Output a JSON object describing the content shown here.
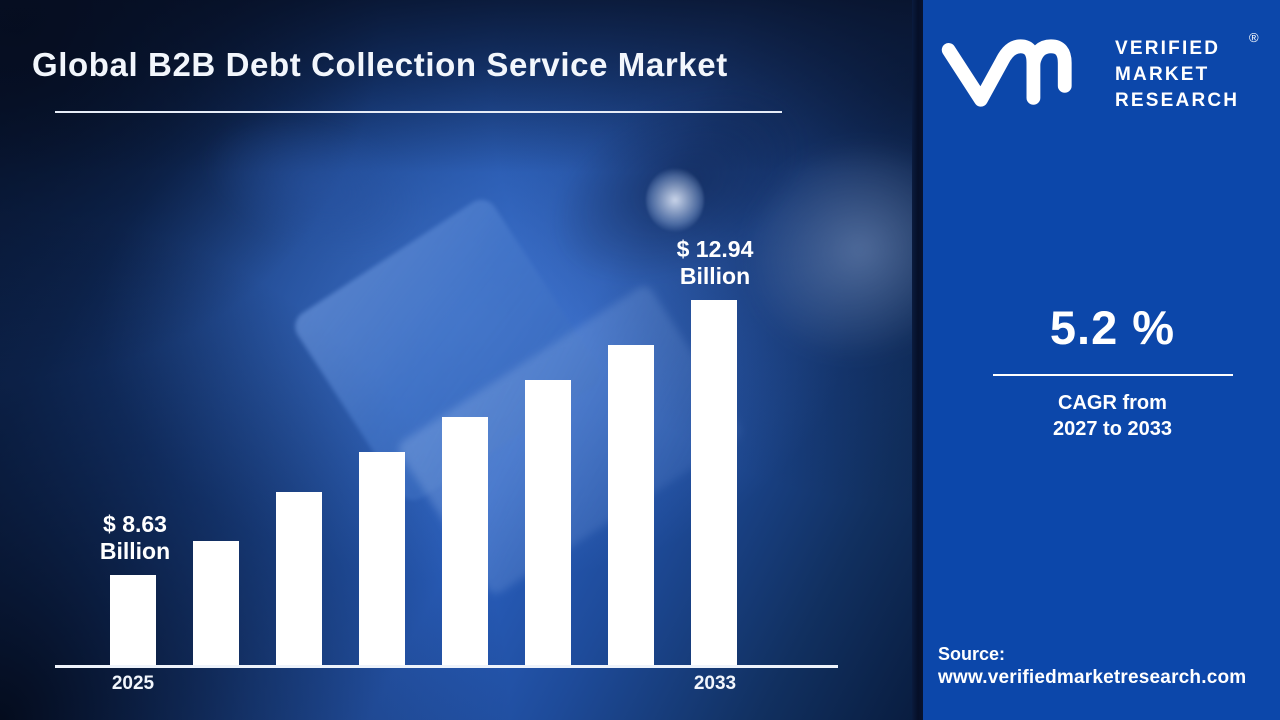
{
  "header": {
    "title": "Global B2B Debt Collection Service Market"
  },
  "brand": {
    "logo_icon": "vmr-monogram-icon",
    "name_lines": [
      "VERIFIED",
      "MARKET",
      "RESEARCH"
    ],
    "registered_mark": "®"
  },
  "chart_data": {
    "type": "bar",
    "title": "Global B2B Debt Collection Service Market",
    "unit": "USD Billion",
    "categories": [
      "2025",
      "",
      "",
      "",
      "",
      "",
      "",
      "2033"
    ],
    "values": [
      8.63,
      9.16,
      9.93,
      10.56,
      11.11,
      11.69,
      12.23,
      12.94
    ],
    "first_bar_label_lines": [
      "$ 8.63",
      "Billion"
    ],
    "last_bar_label_lines": [
      "$ 12.94",
      "Billion"
    ],
    "x_tick_labels": [
      "2025",
      "2033"
    ],
    "bar_color": "#ffffff",
    "baseline_color": "#eef3fb",
    "gridlines": false,
    "value_axis": "hidden",
    "legend": "none"
  },
  "panel": {
    "cagr_value": "5.2 %",
    "cagr_line1": "CAGR from",
    "cagr_line2": "2027 to 2033",
    "source_label": "Source:",
    "source_url": "www.verifiedmarketresearch.com"
  },
  "colors": {
    "panel_blue": "#0c47aa",
    "photo_mid_blue": "#2a60c0",
    "photo_dark_navy": "#0b1e42",
    "bar_white": "#ffffff",
    "text_white": "#ffffff"
  }
}
